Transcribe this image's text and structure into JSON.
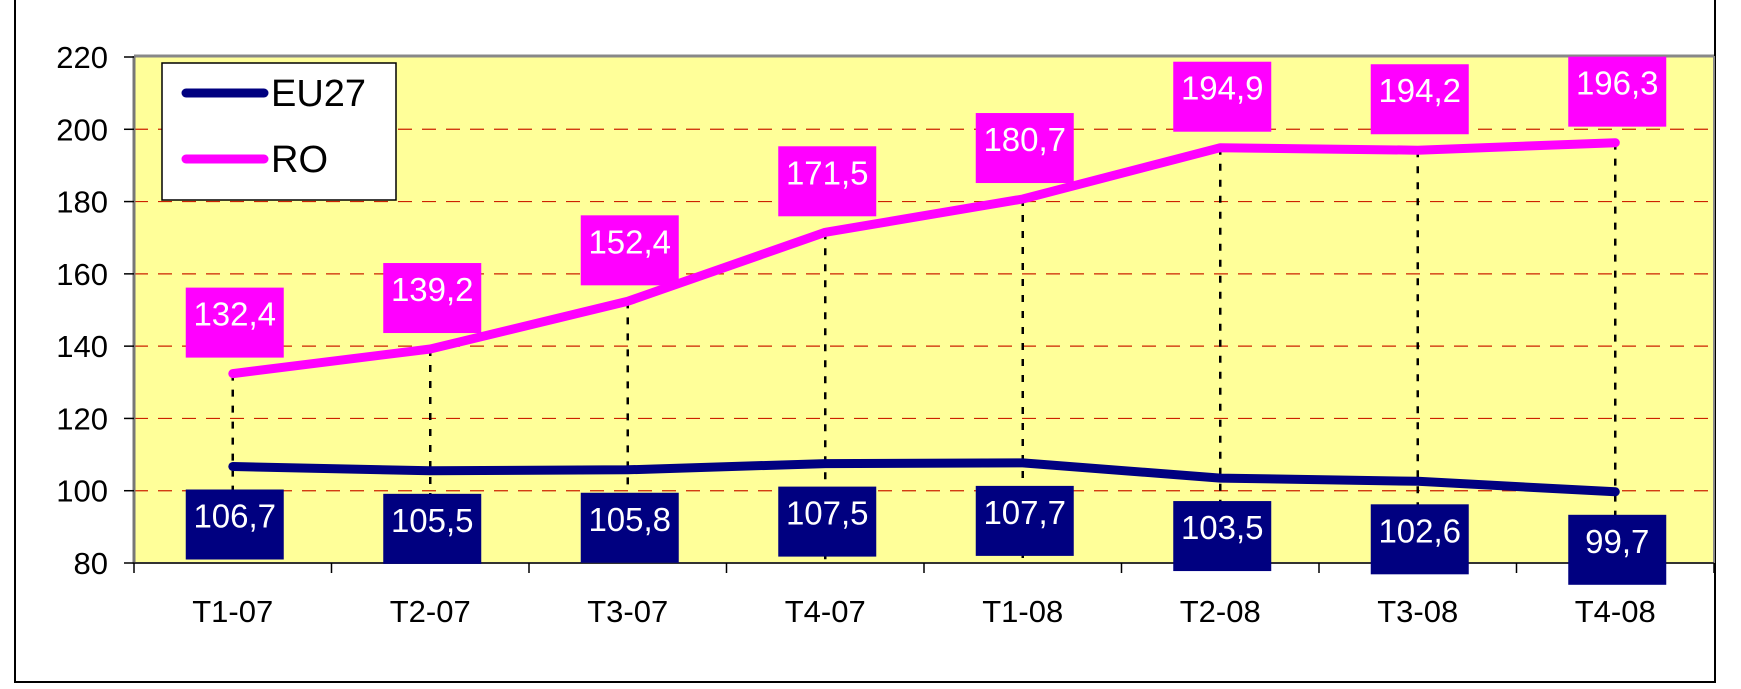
{
  "chart_data": {
    "type": "line",
    "title": "",
    "xlabel": "",
    "ylabel": "",
    "categories": [
      "T1-07",
      "T2-07",
      "T3-07",
      "T4-07",
      "T1-08",
      "T2-08",
      "T3-08",
      "T4-08"
    ],
    "series": [
      {
        "name": "EU27",
        "color": "#000080",
        "values": [
          106.7,
          105.5,
          105.8,
          107.5,
          107.7,
          103.5,
          102.6,
          99.7
        ],
        "labels": [
          "106,7",
          "105,5",
          "105,8",
          "107,5",
          "107,7",
          "103,5",
          "102,6",
          "99,7"
        ],
        "label_position": "below"
      },
      {
        "name": "RO",
        "color": "#FF00FF",
        "values": [
          132.4,
          139.2,
          152.4,
          171.5,
          180.7,
          194.9,
          194.2,
          196.3
        ],
        "labels": [
          "132,4",
          "139,2",
          "152,4",
          "171,5",
          "180,7",
          "194,9",
          "194,2",
          "196,3"
        ],
        "label_position": "above"
      }
    ],
    "ylim": [
      80,
      220
    ],
    "yticks": [
      80,
      100,
      120,
      140,
      160,
      180,
      200,
      220
    ],
    "ytick_labels": [
      "80",
      "100",
      "120",
      "140",
      "160",
      "180",
      "200",
      "220"
    ],
    "grid": true,
    "drop_lines": true,
    "legend_position": "top-left",
    "plot_background": "#FFFF99",
    "grid_color": "#CC2200"
  },
  "legend": {
    "items": [
      {
        "label": "EU27",
        "color": "#000080"
      },
      {
        "label": "RO",
        "color": "#FF00FF"
      }
    ]
  }
}
